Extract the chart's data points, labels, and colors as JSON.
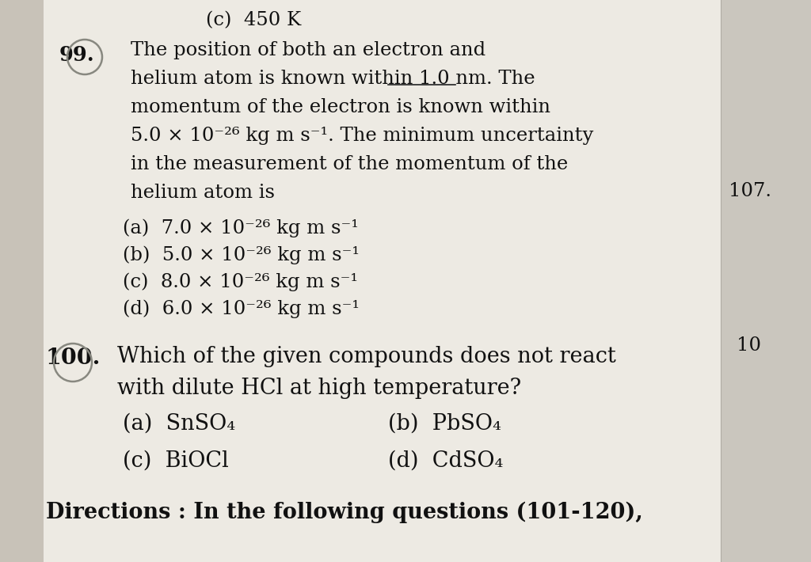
{
  "bg_color": "#e8e5df",
  "text_color": "#1a1a1a",
  "right_strip_color": "#d0ccc5",
  "left_strip_color": "#c8c4bc",
  "page_bg": "#dedad3",
  "c_option": "(c)  450 K",
  "q99_num": "99.",
  "q99_lines": [
    "The position of both an electron and",
    "helium atom is known within 1.0 nm. The",
    "momentum of the electron is known within",
    "5.0 × 10⁻²⁶ kg m s⁻¹. The minimum uncertainty",
    "in the measurement of the momentum of the",
    "helium atom is"
  ],
  "q99_opts": [
    "(a)  7.0 × 10⁻²⁶ kg m s⁻¹",
    "(b)  5.0 × 10⁻²⁶ kg m s⁻¹",
    "(c)  8.0 × 10⁻²⁶ kg m s⁻¹",
    "(d)  6.0 × 10⁻²⁶ kg m s⁻¹"
  ],
  "q100_num": "100.",
  "q100_line1": "Which of the given compounds does not react",
  "q100_line2": "with dilute HCl at high temperature?",
  "q100_opts_left": [
    "(a)  SnSO₄",
    "(c)  BiOCl"
  ],
  "q100_opts_right": [
    "(b)  PbSO₄",
    "(d)  CdSO₄"
  ],
  "side_right_top": "107.",
  "side_right_mid": "10",
  "bottom_text": "Directions : In the following questions (101-120),",
  "font_size_main": 17.5,
  "font_size_q100": 19.5
}
